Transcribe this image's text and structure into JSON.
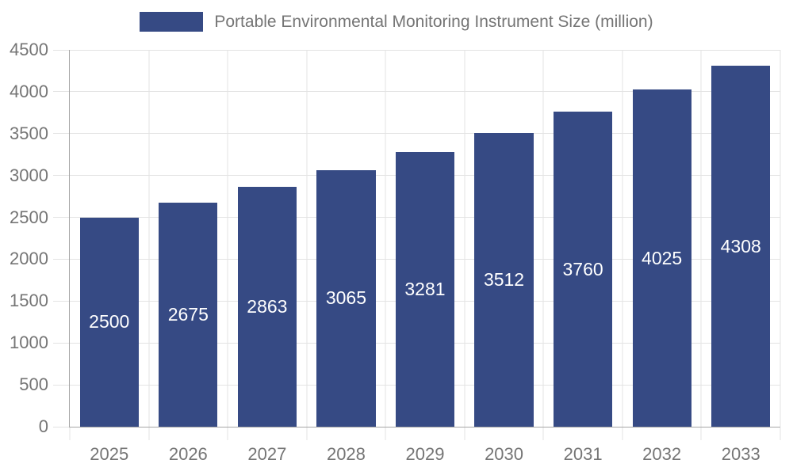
{
  "legend": {
    "swatch_color": "#364A84",
    "label": "Portable Environmental Monitoring Instrument Size (million)"
  },
  "chart_data": {
    "type": "bar",
    "title": "Portable Environmental Monitoring Instrument Size (million)",
    "categories": [
      "2025",
      "2026",
      "2027",
      "2028",
      "2029",
      "2030",
      "2031",
      "2032",
      "2033"
    ],
    "values": [
      2500,
      2675,
      2863,
      3065,
      3281,
      3512,
      3760,
      4025,
      4308
    ],
    "xlabel": "",
    "ylabel": "",
    "ylim": [
      0,
      4500
    ],
    "ytick_step": 500,
    "grid": true,
    "legend_position": "top",
    "bar_color": "#364A84",
    "value_label_color": "#FFFFFF",
    "axis_label_color": "#757575"
  }
}
